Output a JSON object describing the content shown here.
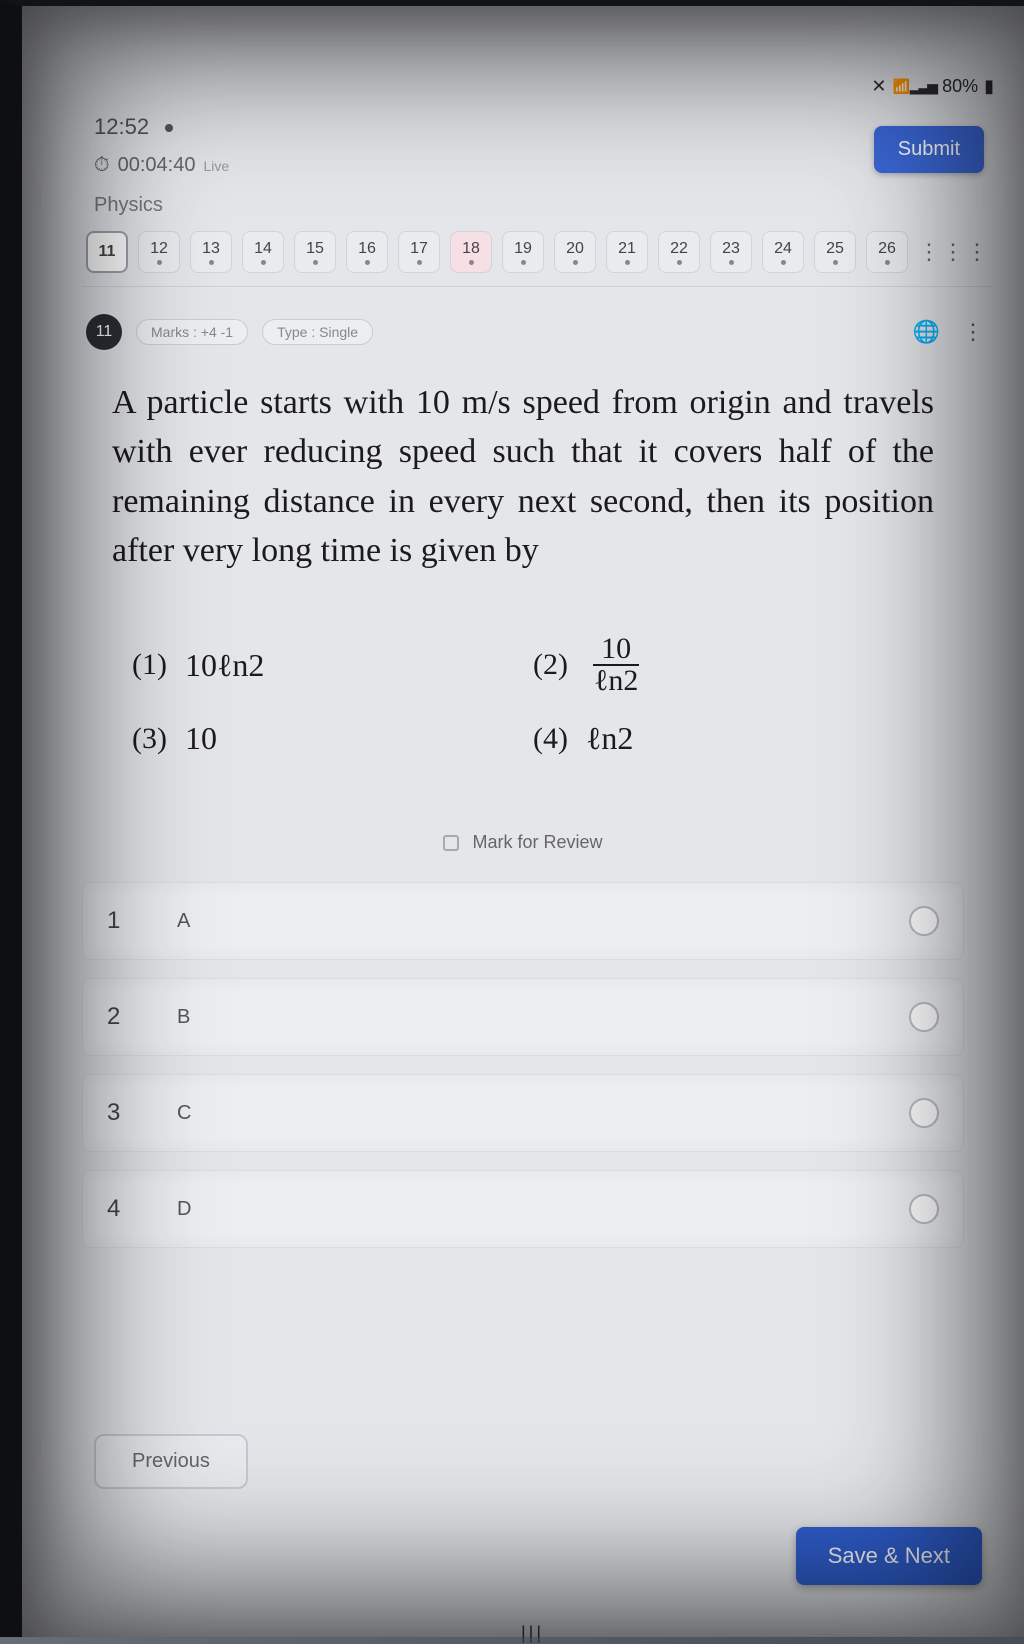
{
  "status": {
    "signal_text": "80%",
    "icons": "✕ ⨉"
  },
  "time": "12:52",
  "timer": {
    "clock_glyph": "⏱",
    "value": "00:04:40",
    "live": "Live"
  },
  "submit_label": "Submit",
  "subject": "Physics",
  "questions": {
    "current": 11,
    "items": [
      {
        "n": "11",
        "current": true
      },
      {
        "n": "12"
      },
      {
        "n": "13"
      },
      {
        "n": "14"
      },
      {
        "n": "15"
      },
      {
        "n": "16"
      },
      {
        "n": "17"
      },
      {
        "n": "18",
        "pink": true
      },
      {
        "n": "19"
      },
      {
        "n": "20"
      },
      {
        "n": "21"
      },
      {
        "n": "22"
      },
      {
        "n": "23"
      },
      {
        "n": "24"
      },
      {
        "n": "25"
      },
      {
        "n": "26"
      }
    ]
  },
  "meta": {
    "number": "11",
    "marks": "Marks : +4 -1",
    "type": "Type : Single"
  },
  "question_text": "A particle starts with 10 m/s speed from origin and travels with ever reducing speed such that it covers half of the remaining distance in every next second, then its position after very long time is given by",
  "options": {
    "o1": {
      "label": "(1)",
      "text": "10ℓn2"
    },
    "o2": {
      "label": "(2)",
      "num": "10",
      "den": "ℓn2"
    },
    "o3": {
      "label": "(3)",
      "text": "10"
    },
    "o4": {
      "label": "(4)",
      "text": "ℓn2"
    }
  },
  "mark_review": "Mark for Review",
  "answers": [
    {
      "n": "1",
      "l": "A"
    },
    {
      "n": "2",
      "l": "B"
    },
    {
      "n": "3",
      "l": "C"
    },
    {
      "n": "4",
      "l": "D"
    }
  ],
  "prev_label": "Previous",
  "save_label": "Save & Next",
  "colors": {
    "submit_bg": "#3b68d8",
    "save_bg": "#2f5fd0"
  }
}
